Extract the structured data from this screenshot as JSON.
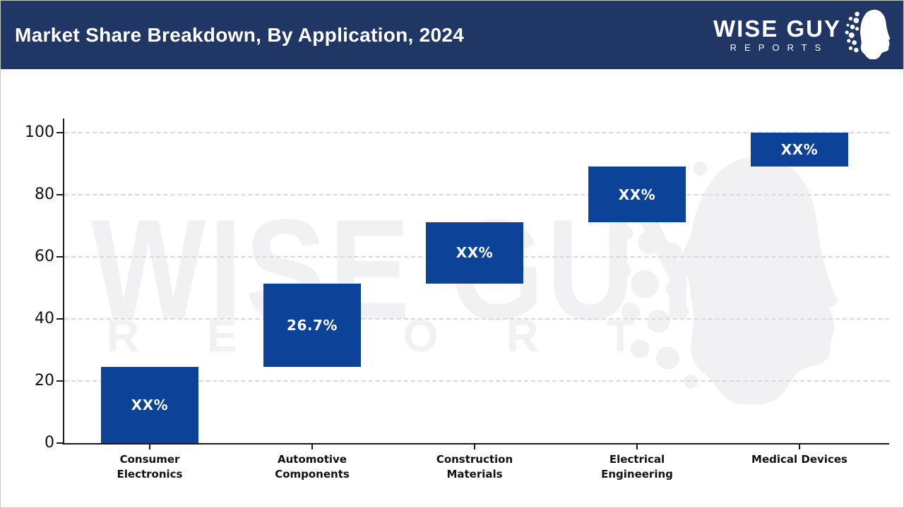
{
  "header": {
    "title": "Market Share Breakdown, By Application, 2024",
    "logo": {
      "line1": "WISE GUY",
      "line2": "REPORTS"
    }
  },
  "watermark": {
    "line1": "WISE GUY",
    "line2": "REPORTS"
  },
  "colors": {
    "header_bg": "#203665",
    "bar": "#0c4298",
    "bar_label": "#ffffff",
    "grid": "#d9d9d9",
    "axis": "#1a1a1a",
    "watermark": "#f1f1f4"
  },
  "chart_data": {
    "type": "bar",
    "subtype": "waterfall",
    "title": "Market Share Breakdown, By Application, 2024",
    "categories": [
      "Consumer Electronics",
      "Automotive Components",
      "Construction Materials",
      "Electrical Engineering",
      "Medical Devices"
    ],
    "category_lines": [
      [
        "Consumer",
        "Electronics"
      ],
      [
        "Automotive",
        "Components"
      ],
      [
        "Construction",
        "Materials"
      ],
      [
        "Electrical",
        "Engineering"
      ],
      [
        "Medical Devices"
      ]
    ],
    "segments": [
      {
        "category": "Consumer Electronics",
        "start": 0,
        "end": 24.6,
        "label": "XX%"
      },
      {
        "category": "Automotive Components",
        "start": 24.6,
        "end": 51.3,
        "label": "26.7%"
      },
      {
        "category": "Construction Materials",
        "start": 51.3,
        "end": 71.2,
        "label": "XX%"
      },
      {
        "category": "Electrical Engineering",
        "start": 71.2,
        "end": 89.0,
        "label": "XX%"
      },
      {
        "category": "Medical Devices",
        "start": 89.0,
        "end": 100.0,
        "label": "XX%"
      }
    ],
    "yticks": [
      0,
      20,
      40,
      60,
      80,
      100
    ],
    "ylim": [
      0,
      105
    ],
    "xlabel": "",
    "ylabel": "",
    "grid": "dashed-horizontal",
    "legend": "none"
  }
}
